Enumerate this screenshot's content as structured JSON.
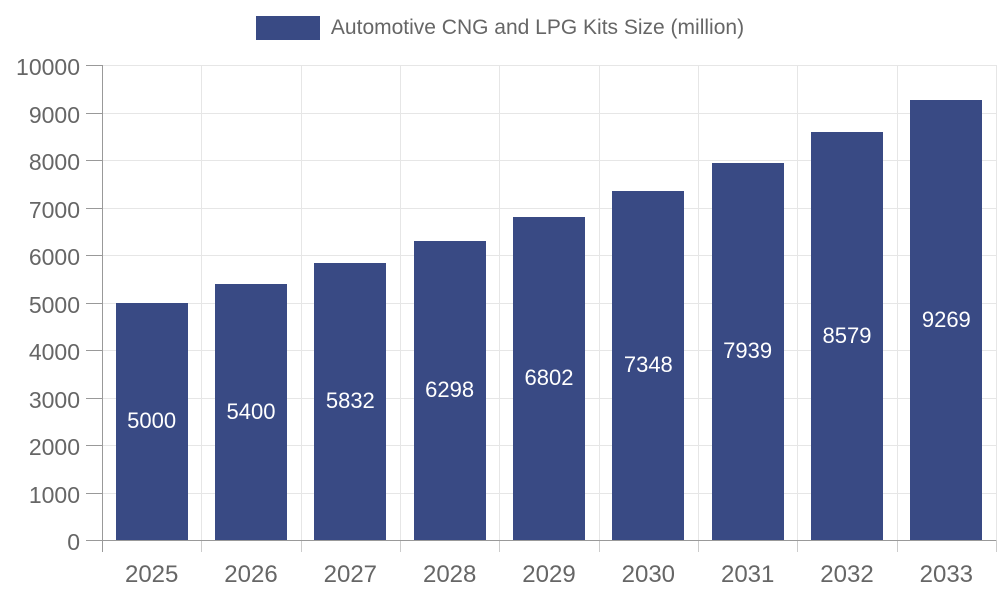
{
  "legend": {
    "label": "Automotive CNG and LPG Kits Size (million)"
  },
  "chart_data": {
    "type": "bar",
    "title": "Automotive CNG and LPG Kits Size (million)",
    "series_name": "Automotive CNG and LPG Kits Size (million)",
    "categories": [
      "2025",
      "2026",
      "2027",
      "2028",
      "2029",
      "2030",
      "2031",
      "2032",
      "2033"
    ],
    "values": [
      5000,
      5400,
      5832,
      6298,
      6802,
      7348,
      7939,
      8579,
      9269
    ],
    "value_labels": [
      "5000",
      "5400",
      "5832",
      "6298",
      "6802",
      "7348",
      "7939",
      "8579",
      "9269"
    ],
    "xlabel": "",
    "ylabel": "",
    "ylim": [
      0,
      10000
    ],
    "y_tick_interval": 1000,
    "y_tick_labels": [
      "0",
      "1000",
      "2000",
      "3000",
      "4000",
      "5000",
      "6000",
      "7000",
      "8000",
      "9000",
      "10000"
    ],
    "grid": true,
    "legend_position": "top",
    "colors": {
      "bar": "#394a84",
      "value_label": "#ffffff",
      "axis_text": "#666666",
      "gridline": "#e6e6e6",
      "axis_line": "#999999",
      "x_tick": "#cccccc"
    }
  }
}
